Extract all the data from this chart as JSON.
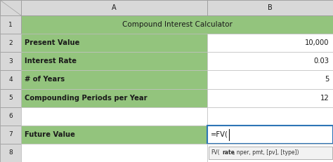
{
  "fig_width": 4.74,
  "fig_height": 2.31,
  "dpi": 100,
  "background_color": "#f0f0f0",
  "col_header_bg": "#d8d8d8",
  "row_header_bg": "#d8d8d8",
  "green_bg": "#93c47d",
  "white_bg": "#ffffff",
  "border_color": "#c0c0c0",
  "dark_border": "#a0a0a0",
  "col_A_label": "A",
  "col_B_label": "B",
  "title_text": "Compound Interest Calculator",
  "rows": [
    {
      "label": "Present Value",
      "value": "10,000",
      "a_green": true
    },
    {
      "label": "Interest Rate",
      "value": "0.03",
      "a_green": true
    },
    {
      "label": "# of Years",
      "value": "5",
      "a_green": true
    },
    {
      "label": "Compounding Periods per Year",
      "value": "12",
      "a_green": true
    },
    {
      "label": "",
      "value": "",
      "a_green": false
    },
    {
      "label": "Future Value",
      "value": "=FV(",
      "a_green": true
    }
  ],
  "header_font_size": 7.0,
  "cell_font_size": 7.2,
  "row_num_font_size": 6.5,
  "title_font_size": 7.5,
  "tooltip_font_size": 5.5,
  "fv_border_color": "#2e75b6",
  "tooltip_bg": "#f2f2f2",
  "tooltip_border": "#b0b0b0"
}
